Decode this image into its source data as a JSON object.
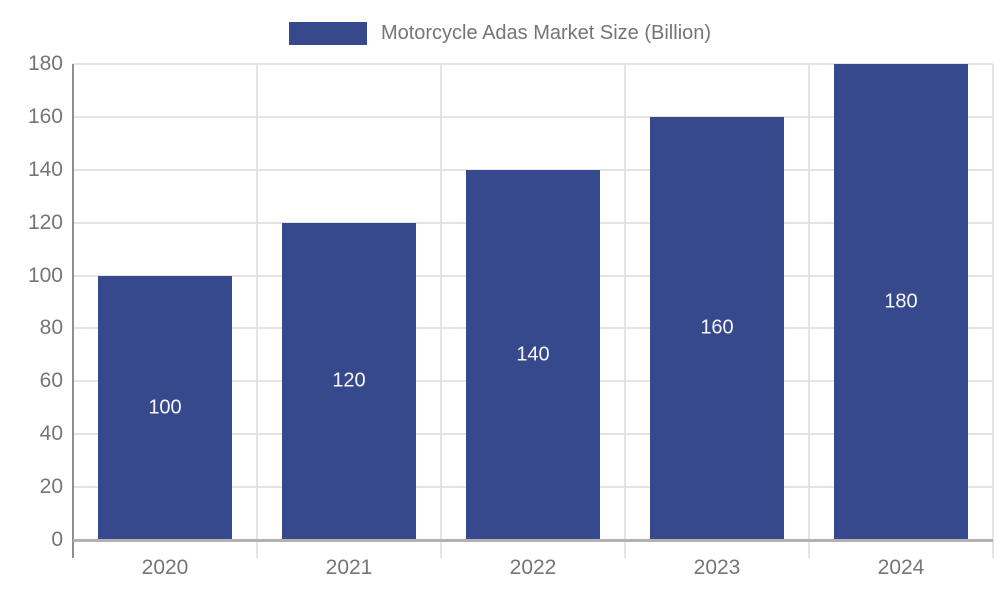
{
  "chart_data": {
    "type": "bar",
    "title": "Motorcycle Adas Market Size (Billion)",
    "legend": {
      "label": "Motorcycle Adas Market Size (Billion)",
      "position": "top"
    },
    "categories": [
      "2020",
      "2021",
      "2022",
      "2023",
      "2024"
    ],
    "series": [
      {
        "name": "Motorcycle Adas Market Size (Billion)",
        "values": [
          100,
          120,
          140,
          160,
          180
        ],
        "bar_labels": [
          "100",
          "120",
          "140",
          "160",
          "180"
        ]
      }
    ],
    "xlabel": "",
    "ylabel": "",
    "ylim": [
      0,
      180
    ],
    "yticks": [
      0,
      20,
      40,
      60,
      80,
      100,
      120,
      140,
      160,
      180
    ],
    "grid": true,
    "colors": {
      "bar": "#36498C",
      "bar_label_text": "#f7f7f9",
      "gridline": "#e4e4e4",
      "x_axis_line": "#b2b2b2",
      "y_axis_line": "#8f8f8f",
      "axis_tick_text": "#757575",
      "legend_text": "#757575",
      "background": "#ffffff"
    }
  }
}
